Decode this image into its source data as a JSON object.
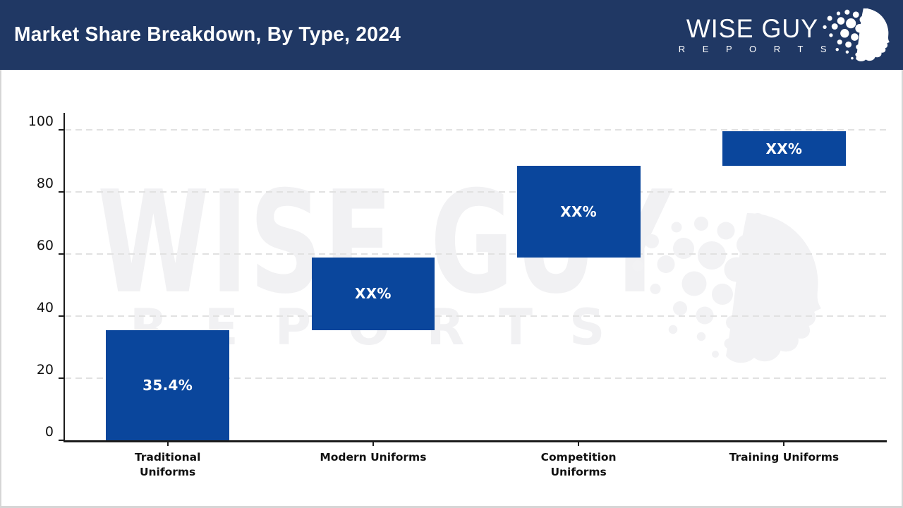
{
  "header": {
    "title": "Market Share Breakdown, By Type, 2024",
    "logo": {
      "primary": "WISE GUY",
      "secondary": "REPORTS"
    }
  },
  "watermark": {
    "primary": "WISE GUY",
    "secondary": "REPORTS"
  },
  "colors": {
    "header_bg": "#203864",
    "bar": "#0a469c",
    "grid": "#e1e1e1",
    "axis": "#1c1c1c",
    "watermark": "#f1f1f3",
    "frame_border": "#d6d6d6",
    "title_text": "#ffffff",
    "bar_label_text": "#ffffff"
  },
  "chart_data": {
    "type": "bar",
    "variant": "waterfall",
    "title": "Market Share Breakdown, By Type, 2024",
    "categories": [
      "Traditional\nUniforms",
      "Modern Uniforms",
      "Competition\nUniforms",
      "Training Uniforms"
    ],
    "segments": [
      {
        "category": "Traditional Uniforms",
        "start": 0,
        "end": 35.4,
        "label": "35.4%"
      },
      {
        "category": "Modern Uniforms",
        "start": 35.4,
        "end": 59,
        "label": "XX%"
      },
      {
        "category": "Competition Uniforms",
        "start": 59,
        "end": 88.5,
        "label": "XX%"
      },
      {
        "category": "Training Uniforms",
        "start": 88.5,
        "end": 99.5,
        "label": "XX%"
      }
    ],
    "xlabel": "",
    "ylabel": "",
    "yticks": [
      0,
      20,
      40,
      60,
      80,
      100
    ],
    "ylim": [
      0,
      105.5
    ],
    "grid": "horizontal-dashed",
    "legend": "none",
    "bar_width_fraction": 0.6
  }
}
